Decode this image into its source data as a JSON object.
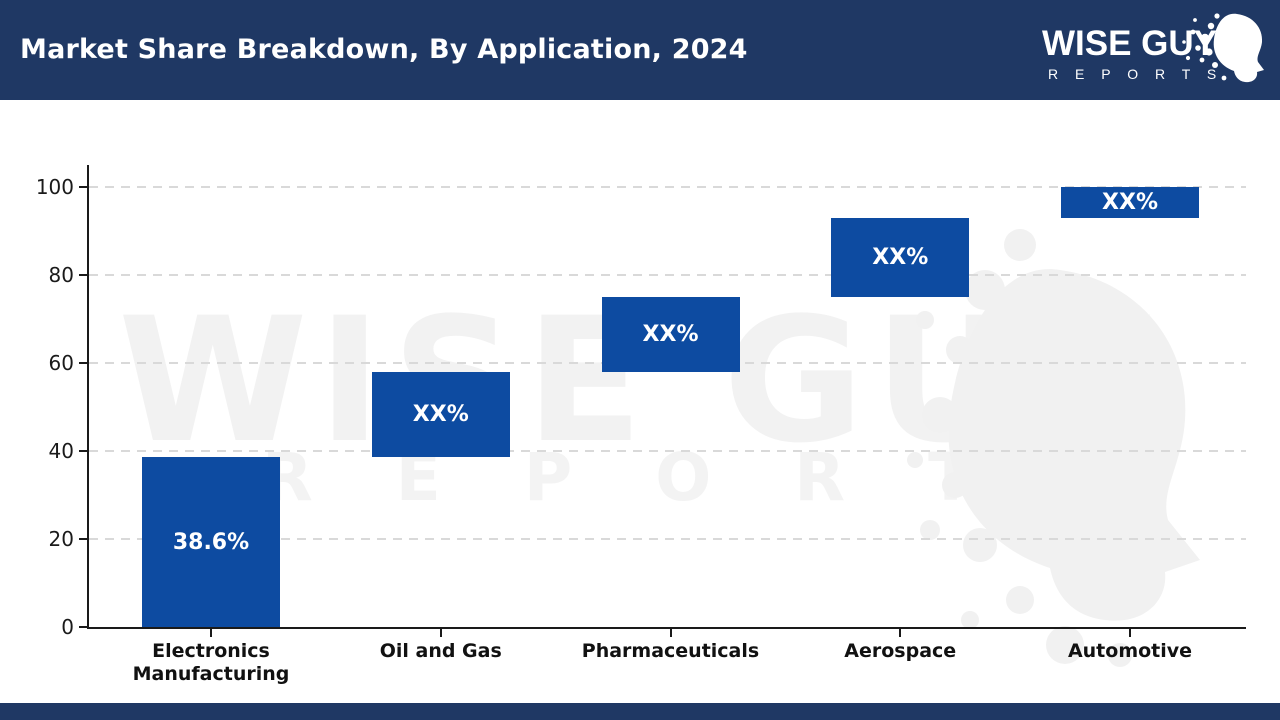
{
  "header": {
    "title": "Market Share Breakdown, By Application, 2024",
    "bg_color": "#1f3864",
    "logo": {
      "name": "WISE GUY REPORTS",
      "line1": "WISE GUY",
      "line2": "R E P O R T S"
    }
  },
  "watermark": {
    "line1": "WISE GUY",
    "line2": "R E P O R T S"
  },
  "footer": {
    "bg_color": "#1f3864"
  },
  "chart_data": {
    "type": "bar",
    "subtype": "floating-waterfall",
    "title": "Market Share Breakdown, By Application, 2024",
    "categories": [
      "Electronics\nManufacturing",
      "Oil and Gas",
      "Pharmaceuticals",
      "Aerospace",
      "Automotive"
    ],
    "segments": [
      {
        "category": "Electronics Manufacturing",
        "start": 0,
        "end": 38.6,
        "label": "38.6%"
      },
      {
        "category": "Oil and Gas",
        "start": 38.6,
        "end": 58,
        "label": "XX%"
      },
      {
        "category": "Pharmaceuticals",
        "start": 58,
        "end": 75,
        "label": "XX%"
      },
      {
        "category": "Aerospace",
        "start": 75,
        "end": 93,
        "label": "XX%"
      },
      {
        "category": "Automotive",
        "start": 93,
        "end": 100,
        "label": "XX%"
      }
    ],
    "xlabel": "",
    "ylabel": "",
    "ylim": [
      0,
      100
    ],
    "yticks": [
      0,
      20,
      40,
      60,
      80,
      100
    ],
    "grid": "horizontal-dashed",
    "legend": "none",
    "bar_color": "#0d4ba1",
    "bar_label_color": "#ffffff",
    "axis_color": "#1a1a1a",
    "gridline_color": "#d9d9d9"
  }
}
